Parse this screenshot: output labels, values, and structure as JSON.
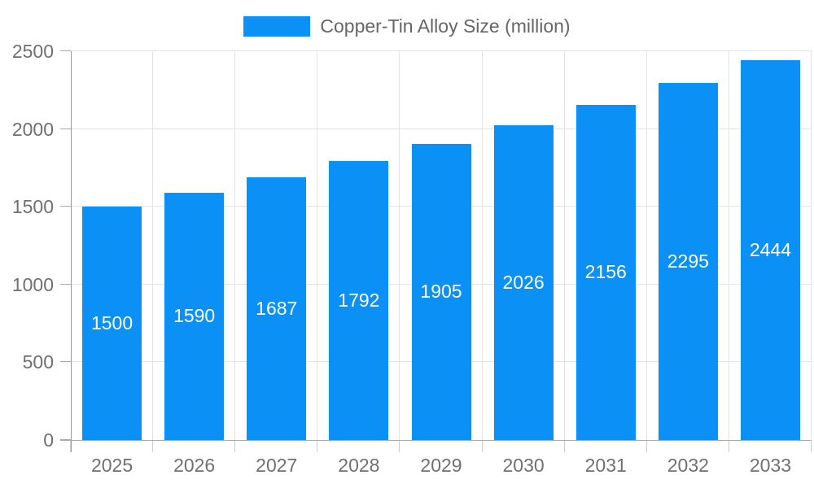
{
  "legend": {
    "label": "Copper-Tin Alloy Size (million)"
  },
  "chart_data": {
    "type": "bar",
    "title": "Copper-Tin Alloy Size (million)",
    "categories": [
      "2025",
      "2026",
      "2027",
      "2028",
      "2029",
      "2030",
      "2031",
      "2032",
      "2033"
    ],
    "values": [
      1500,
      1590,
      1687,
      1792,
      1905,
      2026,
      2156,
      2295,
      2444
    ],
    "xlabel": "",
    "ylabel": "",
    "ylim": [
      0,
      2500
    ],
    "yticks": [
      0,
      500,
      1000,
      1500,
      2000,
      2500
    ],
    "grid": true,
    "legend_position": "top-center",
    "bar_color": "#0b90f6",
    "bar_value_label_color": "#ffffff",
    "axis_label_color": "#707070"
  }
}
